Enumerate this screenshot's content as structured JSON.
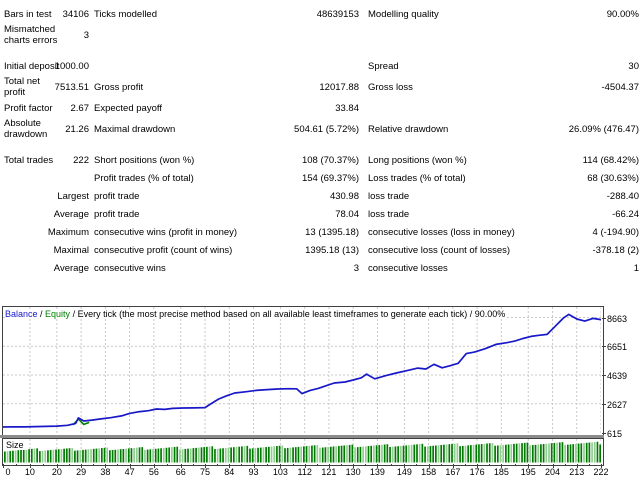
{
  "report": {
    "rows": [
      {
        "c1": "Bars in test",
        "c2": "34106",
        "c3": "Ticks modelled",
        "c4": "48639153",
        "c5": "Modelling quality",
        "c6": "90.00%",
        "gap": false
      },
      {
        "c1": "Mismatched charts errors",
        "c2": "3",
        "c3": "",
        "c4": "",
        "c5": "",
        "c6": "",
        "gap": false
      },
      {
        "c1": "Initial deposit",
        "c2": "1000.00",
        "c3": "",
        "c4": "",
        "c5": "Spread",
        "c6": "30",
        "gap": true
      },
      {
        "c1": "Total net profit",
        "c2": "7513.51",
        "c3": "Gross profit",
        "c4": "12017.88",
        "c5": "Gross loss",
        "c6": "-4504.37",
        "gap": false
      },
      {
        "c1": "Profit factor",
        "c2": "2.67",
        "c3": "Expected payoff",
        "c4": "33.84",
        "c5": "",
        "c6": "",
        "gap": false
      },
      {
        "c1": "Absolute drawdown",
        "c2": "21.26",
        "c3": "Maximal drawdown",
        "c4": "504.61 (5.72%)",
        "c5": "Relative drawdown",
        "c6": "26.09% (476.47)",
        "gap": false
      },
      {
        "c1": "Total trades",
        "c2": "222",
        "c3": "Short positions (won %)",
        "c4": "108 (70.37%)",
        "c5": "Long positions (won %)",
        "c6": "114 (68.42%)",
        "gap": true
      },
      {
        "c1": "",
        "c2": "",
        "c3": "Profit trades (% of total)",
        "c4": "154 (69.37%)",
        "c5": "Loss trades (% of total)",
        "c6": "68 (30.63%)",
        "gap": false
      },
      {
        "c1": "",
        "c2": "Largest",
        "c3": "profit trade",
        "c4": "430.98",
        "c5": "loss trade",
        "c6": "-288.40",
        "gap": false
      },
      {
        "c1": "",
        "c2": "Average",
        "c3": "profit trade",
        "c4": "78.04",
        "c5": "loss trade",
        "c6": "-66.24",
        "gap": false
      },
      {
        "c1": "",
        "c2": "Maximum",
        "c3": "consecutive wins (profit in money)",
        "c4": "13 (1395.18)",
        "c5": "consecutive losses (loss in money)",
        "c6": "4 (-194.90)",
        "gap": false
      },
      {
        "c1": "",
        "c2": "Maximal",
        "c3": "consecutive profit (count of wins)",
        "c4": "1395.18 (13)",
        "c5": "consecutive loss (count of losses)",
        "c6": "-378.18 (2)",
        "gap": false
      },
      {
        "c1": "",
        "c2": "Average",
        "c3": "consecutive wins",
        "c4": "3",
        "c5": "consecutive losses",
        "c6": "1",
        "gap": false
      }
    ]
  },
  "chart_data": {
    "type": "line",
    "legend": {
      "balance": "Balance",
      "sep1": " / ",
      "equity": "Equity",
      "sep2": " / ",
      "rest": "Every tick (the most precise method based on all available least timeframes to generate each tick) / 90.00%"
    },
    "size_panel_label": "Size",
    "x_ticks": [
      0,
      10,
      20,
      29,
      38,
      47,
      56,
      66,
      75,
      84,
      93,
      103,
      112,
      121,
      130,
      139,
      149,
      158,
      167,
      176,
      185,
      195,
      204,
      213,
      222
    ],
    "y_ticks": [
      8663,
      6651,
      4639,
      2627,
      615
    ],
    "x_range": [
      0,
      222
    ],
    "y_range": [
      615,
      8663
    ],
    "grid": true,
    "legend_position": "top-left",
    "series": [
      {
        "name": "Balance",
        "points": [
          [
            0,
            1000
          ],
          [
            4,
            1015
          ],
          [
            8,
            1008
          ],
          [
            12,
            1025
          ],
          [
            16,
            1040
          ],
          [
            20,
            1060
          ],
          [
            24,
            1120
          ],
          [
            27,
            1250
          ],
          [
            28,
            1640
          ],
          [
            30,
            1420
          ],
          [
            33,
            1480
          ],
          [
            36,
            1560
          ],
          [
            40,
            1650
          ],
          [
            44,
            1780
          ],
          [
            47,
            1950
          ],
          [
            50,
            2060
          ],
          [
            54,
            2140
          ],
          [
            57,
            2260
          ],
          [
            60,
            2230
          ],
          [
            63,
            2300
          ],
          [
            67,
            2330
          ],
          [
            71,
            2340
          ],
          [
            75,
            2360
          ],
          [
            77,
            2600
          ],
          [
            80,
            2950
          ],
          [
            83,
            3180
          ],
          [
            86,
            3380
          ],
          [
            90,
            3460
          ],
          [
            94,
            3560
          ],
          [
            98,
            3620
          ],
          [
            102,
            3660
          ],
          [
            106,
            3680
          ],
          [
            109,
            3670
          ],
          [
            111,
            3340
          ],
          [
            114,
            3560
          ],
          [
            117,
            3700
          ],
          [
            120,
            3890
          ],
          [
            123,
            4080
          ],
          [
            127,
            4150
          ],
          [
            130,
            4290
          ],
          [
            133,
            4440
          ],
          [
            135,
            4700
          ],
          [
            138,
            4370
          ],
          [
            142,
            4590
          ],
          [
            146,
            4780
          ],
          [
            150,
            4950
          ],
          [
            154,
            5120
          ],
          [
            157,
            5060
          ],
          [
            160,
            5390
          ],
          [
            163,
            5140
          ],
          [
            166,
            5290
          ],
          [
            169,
            5460
          ],
          [
            172,
            6140
          ],
          [
            175,
            6240
          ],
          [
            179,
            6480
          ],
          [
            183,
            6780
          ],
          [
            187,
            6900
          ],
          [
            190,
            7010
          ],
          [
            193,
            7190
          ],
          [
            196,
            7340
          ],
          [
            199,
            7420
          ],
          [
            202,
            7480
          ],
          [
            205,
            8050
          ],
          [
            208,
            8620
          ],
          [
            210,
            8880
          ],
          [
            213,
            8560
          ],
          [
            216,
            8410
          ],
          [
            219,
            8600
          ],
          [
            222,
            8513.51
          ]
        ]
      },
      {
        "name": "Equity",
        "points": [
          [
            26,
            1150
          ],
          [
            28,
            1560
          ],
          [
            30,
            1180
          ],
          [
            32,
            1320
          ]
        ]
      }
    ],
    "size_bars": {
      "count": 222,
      "min_height": 11,
      "max_height": 18,
      "jitter": 3
    },
    "colors": {
      "balance": "#1818c8",
      "equity": "#008000",
      "grid": "#c9c9c9",
      "bar_dark": "#007a00",
      "bar_light": "#90cf90",
      "frame": "#404040",
      "splitter": "#8c8c8c"
    }
  }
}
